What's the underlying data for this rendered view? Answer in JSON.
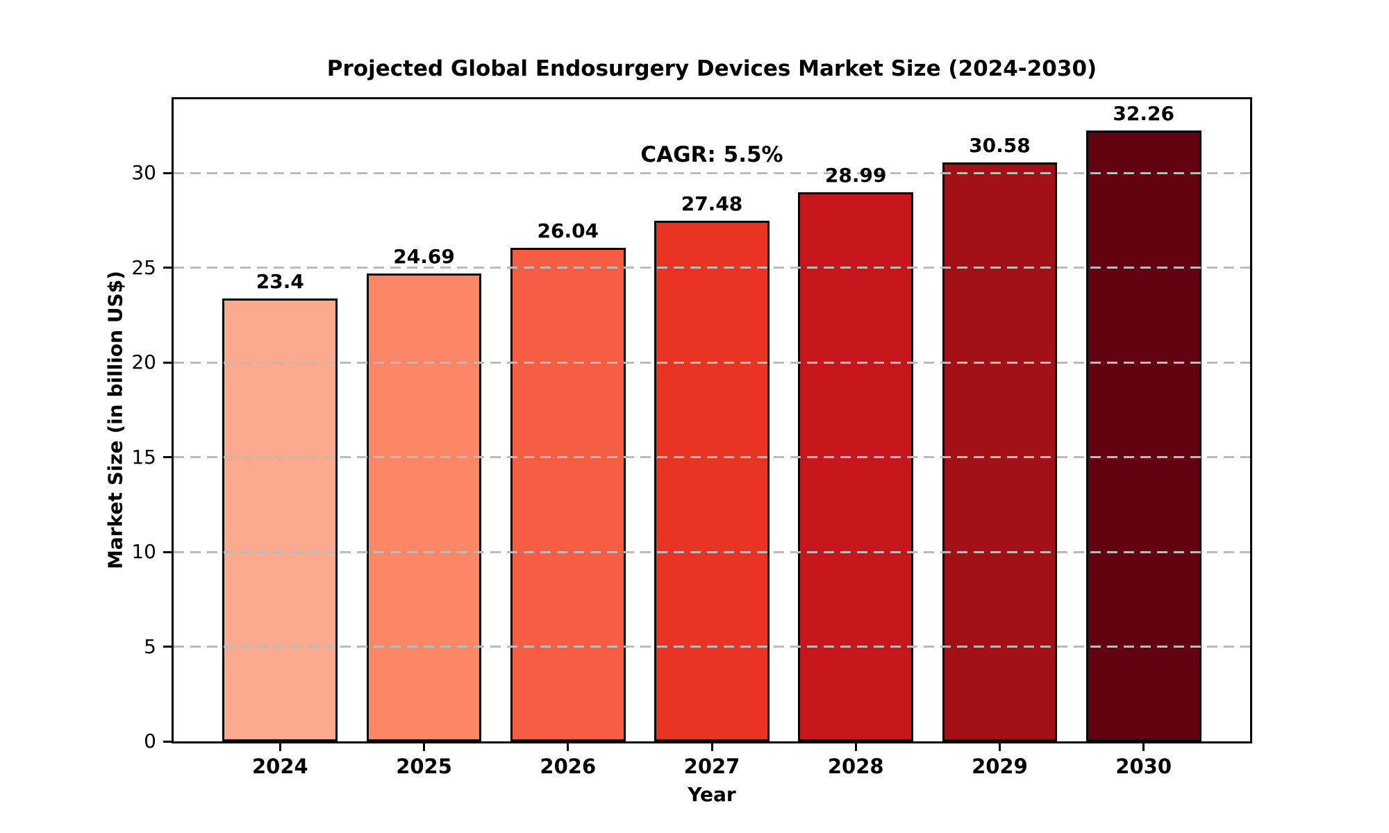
{
  "figure": {
    "title": "Projected Global Endosurgery Devices Market Size (2024-2030)",
    "xlabel": "Year",
    "ylabel": "Market Size (in billion US$)",
    "annotation": "CAGR: 5.5%"
  },
  "chart_data": {
    "type": "bar",
    "title": "Projected Global Endosurgery Devices Market Size (2024-2030)",
    "xlabel": "Year",
    "ylabel": "Market Size (in billion US$)",
    "annotation": "CAGR: 5.5%",
    "categories": [
      "2024",
      "2025",
      "2026",
      "2027",
      "2028",
      "2029",
      "2030"
    ],
    "values": [
      23.4,
      24.69,
      26.04,
      27.48,
      28.99,
      30.58,
      32.26
    ],
    "bar_labels": [
      "23.4",
      "24.69",
      "26.04",
      "27.48",
      "28.99",
      "30.58",
      "32.26"
    ],
    "bar_colors": [
      "#FBAA8D",
      "#FB8767",
      "#F65D43",
      "#EA3423",
      "#C7171C",
      "#A31116",
      "#630311"
    ],
    "bar_edge_color": "#000000",
    "yticks": [
      0,
      5,
      10,
      15,
      20,
      25,
      30
    ],
    "ylim": [
      0,
      33.9
    ],
    "grid": "horizontal-dashed",
    "grid_color": "#bbbbbb",
    "legend": "none",
    "background_color": "#ffffff",
    "text_color": "#000000"
  }
}
